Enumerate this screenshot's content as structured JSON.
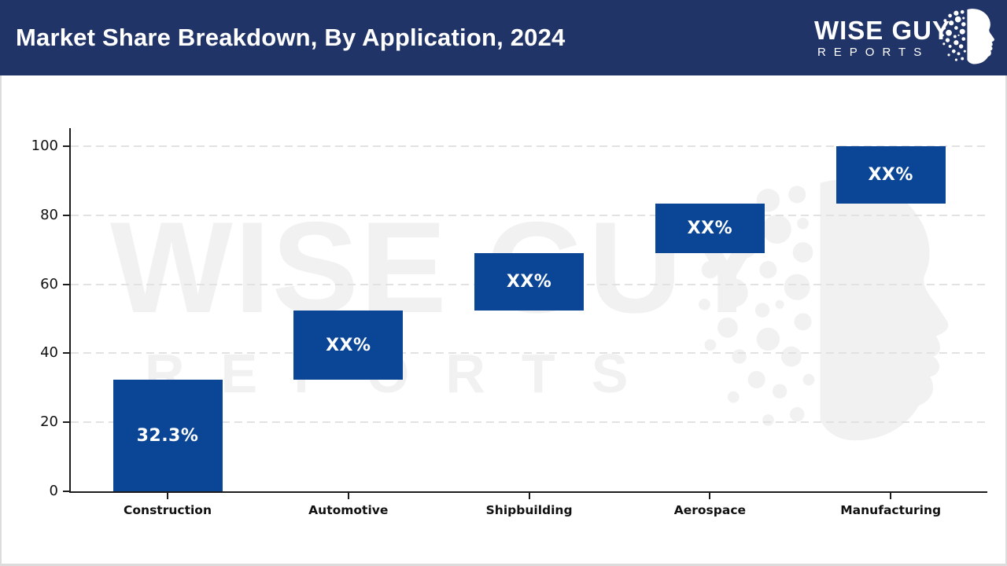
{
  "header": {
    "title": "Market Share Breakdown, By Application, 2024",
    "logo": {
      "wordmark": "WISE GUY",
      "subtitle": "REPORTS"
    }
  },
  "watermark": {
    "wordmark": "WISE GUY",
    "subtitle": "REPORTS"
  },
  "colors": {
    "header_bg": "#213468",
    "header_text": "#ffffff",
    "bar_fill": "#0a4596",
    "bar_label_text": "#ffffff",
    "axis": "#1c1c1c",
    "tick_label": "#111111",
    "gridline": "#e2e2e2",
    "watermark": "#f1f1f1",
    "border": "#dcdcdc",
    "background": "#ffffff"
  },
  "chart_data": {
    "type": "bar",
    "subtype": "waterfall",
    "title": "Market Share Breakdown, By Application, 2024",
    "xlabel": "",
    "ylabel": "",
    "categories": [
      "Construction",
      "Automotive",
      "Shipbuilding",
      "Aerospace",
      "Manufacturing"
    ],
    "segments": [
      {
        "category": "Construction",
        "start": 0,
        "end": 32.3,
        "label": "32.3%"
      },
      {
        "category": "Automotive",
        "start": 32.3,
        "end": 52.3,
        "label": "XX%"
      },
      {
        "category": "Shipbuilding",
        "start": 52.3,
        "end": 69.0,
        "label": "XX%"
      },
      {
        "category": "Aerospace",
        "start": 69.0,
        "end": 83.3,
        "label": "XX%"
      },
      {
        "category": "Manufacturing",
        "start": 83.3,
        "end": 100.0,
        "label": "XX%"
      }
    ],
    "yticks": [
      0,
      20,
      40,
      60,
      80,
      100
    ],
    "ylim": [
      0,
      105
    ],
    "grid": "horizontal dashed",
    "legend": "none"
  }
}
